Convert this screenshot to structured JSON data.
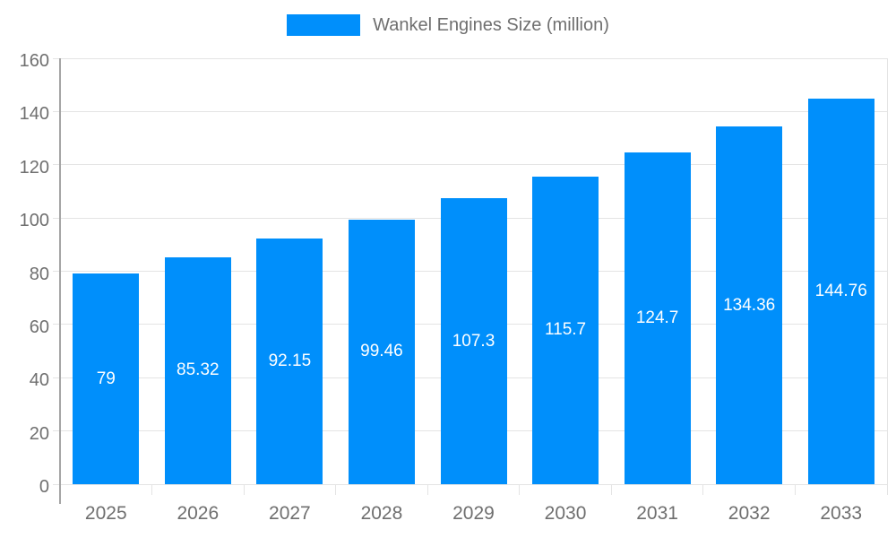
{
  "chart_data": {
    "type": "bar",
    "title": "Wankel Engines Size (million)",
    "legend": [
      {
        "label": "Wankel Engines Size (million)",
        "color": "#008FFB"
      }
    ],
    "legend_position": "top",
    "categories": [
      "2025",
      "2026",
      "2027",
      "2028",
      "2029",
      "2030",
      "2031",
      "2032",
      "2033"
    ],
    "values": [
      79,
      85.32,
      92.15,
      99.46,
      107.3,
      115.7,
      124.7,
      134.36,
      144.76
    ],
    "value_labels": [
      "79",
      "85.32",
      "92.15",
      "99.46",
      "107.3",
      "115.7",
      "124.7",
      "134.36",
      "144.76"
    ],
    "xlabel": "",
    "ylabel": "",
    "ylim": [
      0,
      160
    ],
    "yticks": [
      0,
      20,
      40,
      60,
      80,
      100,
      120,
      140,
      160
    ],
    "grid": true
  },
  "colors": {
    "bar": "#008FFB",
    "grid": "#e4e4e4",
    "axis": "#a5a5a5",
    "tick_label": "#6f6f6f",
    "legend_text": "#6f6f6f",
    "value_label": "#ffffff",
    "background": "#ffffff"
  }
}
